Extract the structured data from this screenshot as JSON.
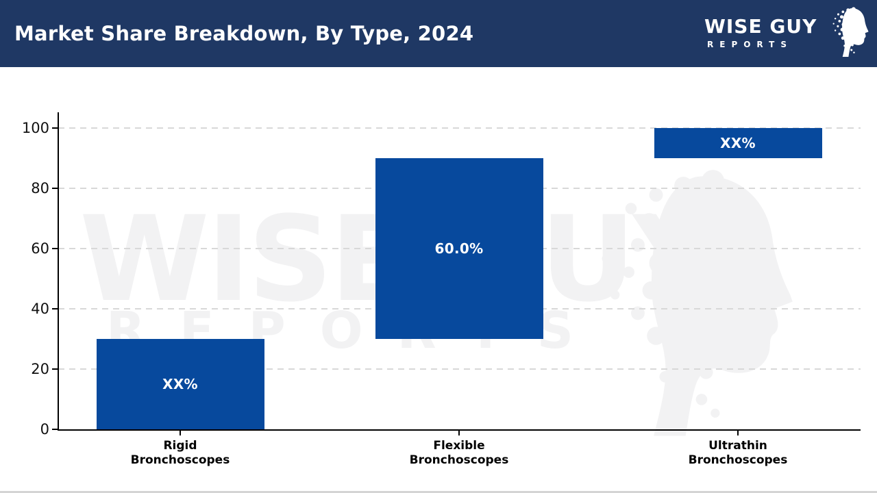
{
  "header": {
    "title": "Market Share Breakdown, By Type, 2024",
    "logo": {
      "wordmark": "WISE GUY",
      "subtext": "REPORTS"
    }
  },
  "watermark": {
    "wordmark": "WISE GUY",
    "subtext": "REPORTS"
  },
  "chart_data": {
    "type": "bar",
    "subtype": "floating-segment-waterfall",
    "title": "Market Share Breakdown, By Type, 2024",
    "categories": [
      "Rigid Bronchoscopes",
      "Flexible Bronchoscopes",
      "Ultrathin Bronchoscopes"
    ],
    "category_lines": [
      [
        "Rigid",
        "Bronchoscopes"
      ],
      [
        "Flexible",
        "Bronchoscopes"
      ],
      [
        "Ultrathin",
        "Bronchoscopes"
      ]
    ],
    "bars": [
      {
        "category": "Rigid Bronchoscopes",
        "start": 0,
        "end": 30,
        "label": "XX%"
      },
      {
        "category": "Flexible Bronchoscopes",
        "start": 30,
        "end": 90,
        "label": "60.0%"
      },
      {
        "category": "Ultrathin Bronchoscopes",
        "start": 90,
        "end": 100,
        "label": "XX%"
      }
    ],
    "xlabel": "",
    "ylabel": "",
    "yticks": [
      0,
      20,
      40,
      60,
      80,
      100
    ],
    "ylim": [
      0,
      105
    ],
    "grid": "horizontal-dashed",
    "legend_position": "none"
  },
  "colors": {
    "header_bg": "#1f3864",
    "bar_fill": "#07499d",
    "bar_label": "#ffffff",
    "grid_line": "#d8d8d8",
    "axis_line": "#000000",
    "tick_label": "#111111",
    "watermark": "#f2f2f3",
    "page_bg": "#ffffff",
    "bottom_rule": "#d4d4d4"
  }
}
